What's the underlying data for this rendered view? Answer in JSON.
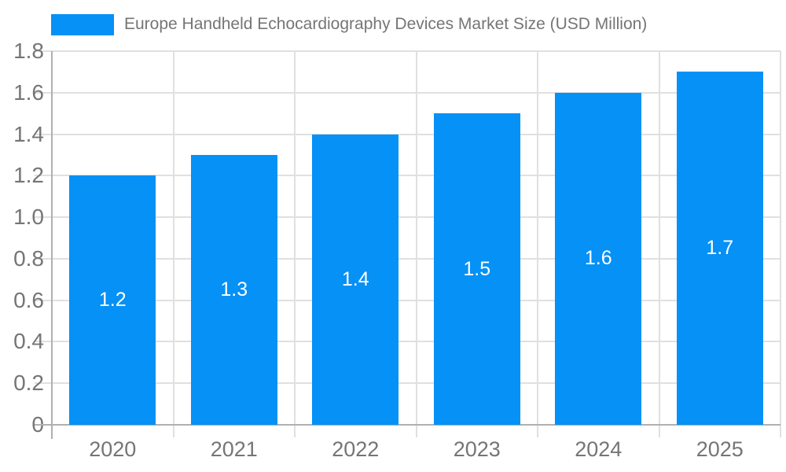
{
  "legend": {
    "title": "Europe Handheld Echocardiography Devices Market Size (USD Million)"
  },
  "colors": {
    "bar": "#0591f6",
    "grid": "#e0e0e0",
    "axis": "#b0b0b0",
    "text": "#757575",
    "value_label": "#ffffff",
    "background": "#ffffff"
  },
  "chart_data": {
    "type": "bar",
    "title": "Europe Handheld Echocardiography Devices Market Size (USD Million)",
    "categories": [
      "2020",
      "2021",
      "2022",
      "2023",
      "2024",
      "2025"
    ],
    "values": [
      1.2,
      1.3,
      1.4,
      1.5,
      1.6,
      1.7
    ],
    "value_labels": [
      "1.2",
      "1.3",
      "1.4",
      "1.5",
      "1.6",
      "1.7"
    ],
    "xlabel": "",
    "ylabel": "",
    "ylim": [
      0,
      1.8
    ],
    "yticks": [
      0,
      0.2,
      0.4,
      0.6,
      0.8,
      1.0,
      1.2,
      1.4,
      1.6,
      1.8
    ],
    "ytick_labels": [
      "0",
      "0.2",
      "0.4",
      "0.6",
      "0.8",
      "1.0",
      "1.2",
      "1.4",
      "1.6",
      "1.8"
    ],
    "grid": true,
    "legend_position": "top-left",
    "value_label_position": "center"
  }
}
